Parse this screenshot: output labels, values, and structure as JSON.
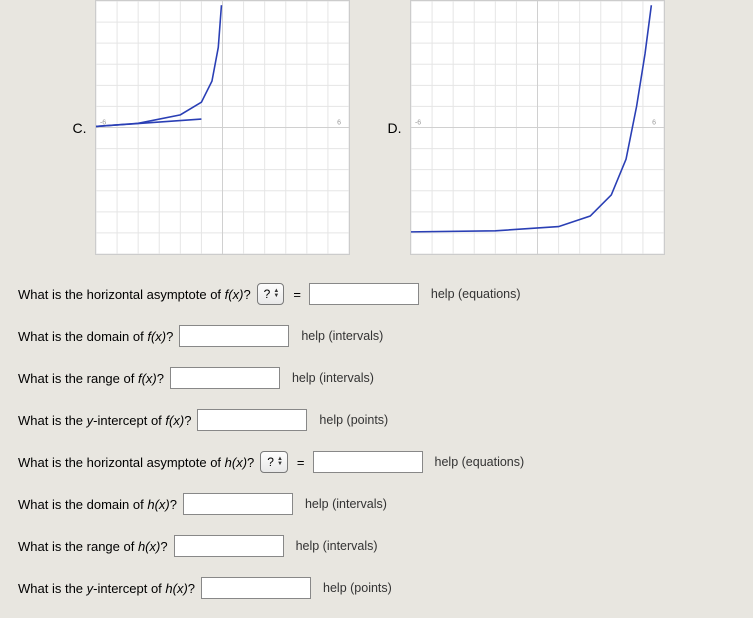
{
  "graphs": {
    "C": {
      "label": "C.",
      "background": "#ffffff",
      "grid_color": "#e5e5e5",
      "axis_color": "#d0d0d0",
      "curve_color": "#2a3fb5",
      "type": "exponential-reflected",
      "xlim": [
        -6,
        6
      ],
      "ylim": [
        -6,
        6
      ],
      "axis_tick_label_left": "-6",
      "axis_tick_label_right": "6",
      "curve_points": [
        [
          -6,
          0.05
        ],
        [
          -4,
          0.2
        ],
        [
          -2,
          0.6
        ],
        [
          -1,
          1.2
        ],
        [
          -0.5,
          2.2
        ],
        [
          -0.2,
          3.8
        ],
        [
          -0.05,
          5.8
        ]
      ],
      "draw_negative_flat": true
    },
    "D": {
      "label": "D.",
      "background": "#ffffff",
      "grid_color": "#e5e5e5",
      "axis_color": "#d0d0d0",
      "curve_color": "#2a3fb5",
      "type": "exponential",
      "xlim": [
        -6,
        6
      ],
      "ylim": [
        -6,
        6
      ],
      "axis_tick_label_left": "-6",
      "axis_tick_label_right": "6",
      "curve_points": [
        [
          -6,
          -4.95
        ],
        [
          -2,
          -4.9
        ],
        [
          1,
          -4.7
        ],
        [
          2.5,
          -4.2
        ],
        [
          3.5,
          -3.2
        ],
        [
          4.2,
          -1.5
        ],
        [
          4.7,
          1
        ],
        [
          5.1,
          3.5
        ],
        [
          5.4,
          5.8
        ]
      ],
      "draw_negative_flat": false
    }
  },
  "questions": [
    {
      "id": "q1",
      "prefix": "What is the horizontal asymptote of ",
      "fn": "f(x)",
      "suffix": "?",
      "has_select": true,
      "select_label": "?",
      "has_equals": true,
      "help": "help (equations)",
      "input_width": 110
    },
    {
      "id": "q2",
      "prefix": "What is the domain of ",
      "fn": "f(x)",
      "suffix": "?",
      "has_select": false,
      "help": "help (intervals)",
      "input_width": 110
    },
    {
      "id": "q3",
      "prefix": "What is the range of ",
      "fn": "f(x)",
      "suffix": "?",
      "has_select": false,
      "help": "help (intervals)",
      "input_width": 110
    },
    {
      "id": "q4",
      "prefix": "What is the ",
      "mid_italic": "y",
      "mid_suffix": "-intercept of ",
      "fn": "f(x)",
      "suffix": "?",
      "has_select": false,
      "help": "help (points)",
      "input_width": 110
    },
    {
      "id": "q5",
      "prefix": "What is the horizontal asymptote of ",
      "fn": "h(x)",
      "suffix": "?",
      "has_select": true,
      "select_label": "?",
      "has_equals": true,
      "help": "help (equations)",
      "input_width": 110
    },
    {
      "id": "q6",
      "prefix": "What is the domain of ",
      "fn": "h(x)",
      "suffix": "?",
      "has_select": false,
      "help": "help (intervals)",
      "input_width": 110
    },
    {
      "id": "q7",
      "prefix": "What is the range of ",
      "fn": "h(x)",
      "suffix": "?",
      "has_select": false,
      "help": "help (intervals)",
      "input_width": 110
    },
    {
      "id": "q8",
      "prefix": "What is the ",
      "mid_italic": "y",
      "mid_suffix": "-intercept of ",
      "fn": "h(x)",
      "suffix": "?",
      "has_select": false,
      "help": "help (points)",
      "input_width": 110
    }
  ],
  "select_placeholder": "?",
  "equals_sign": "="
}
